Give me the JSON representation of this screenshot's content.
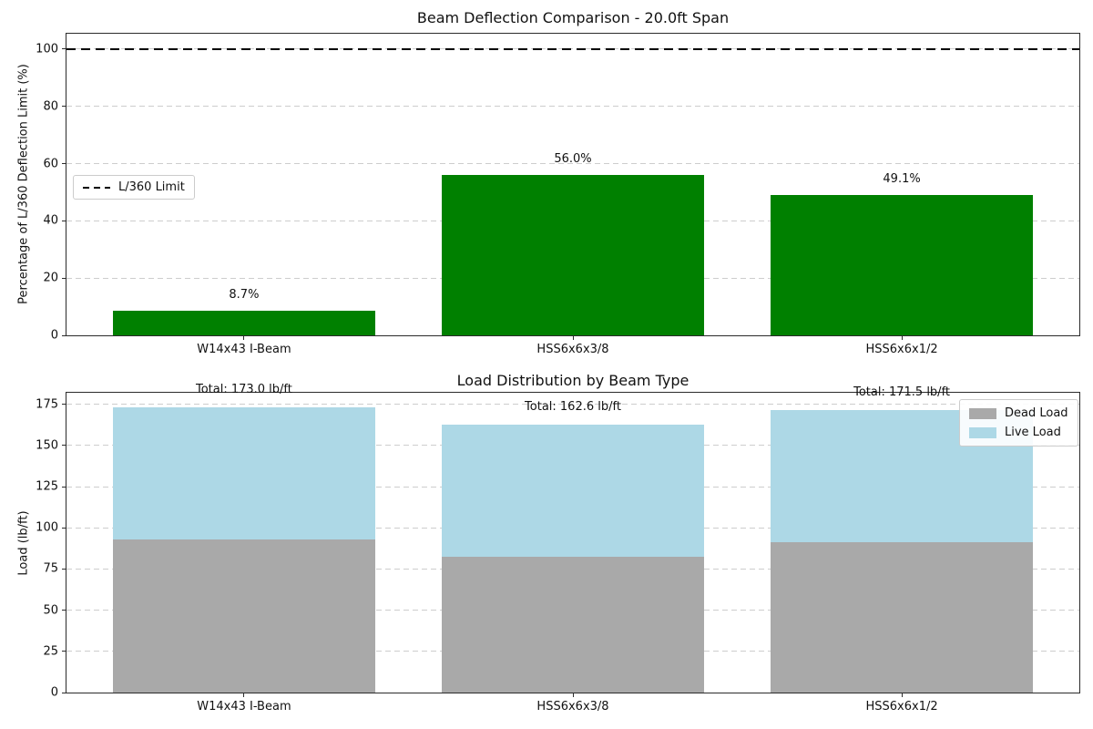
{
  "figure": {
    "background": "#ffffff"
  },
  "chart_data": [
    {
      "type": "bar",
      "title": "Beam Deflection Comparison - 20.0ft Span",
      "xlabel": "",
      "ylabel": "Percentage of L/360 Deflection Limit (%)",
      "categories": [
        "W14x43 I-Beam",
        "HSS6x6x3/8",
        "HSS6x6x1/2"
      ],
      "values": [
        8.7,
        56.0,
        49.1
      ],
      "value_labels": [
        "8.7%",
        "56.0%",
        "49.1%"
      ],
      "bar_color": "#008000",
      "ylim": [
        0,
        105.4
      ],
      "yticks": [
        0,
        20,
        40,
        60,
        80,
        100
      ],
      "grid": true,
      "reference_line": {
        "value": 100,
        "label": "L/360 Limit",
        "color": "#000000",
        "style": "dashed"
      },
      "legend_position": "center left"
    },
    {
      "type": "stacked-bar",
      "title": "Load Distribution by Beam Type",
      "xlabel": "",
      "ylabel": "Load (lb/ft)",
      "categories": [
        "W14x43 I-Beam",
        "HSS6x6x3/8",
        "HSS6x6x1/2"
      ],
      "series": [
        {
          "name": "Dead Load",
          "color": "#a9a9a9",
          "values": [
            93.0,
            82.6,
            91.5
          ]
        },
        {
          "name": "Live Load",
          "color": "#add8e6",
          "values": [
            80.0,
            80.0,
            80.0
          ]
        }
      ],
      "totals": [
        173.0,
        162.6,
        171.5
      ],
      "total_labels": [
        "Total: 173.0 lb/ft",
        "Total: 162.6 lb/ft",
        "Total: 171.5 lb/ft"
      ],
      "ylim": [
        0,
        182
      ],
      "yticks": [
        0,
        25,
        50,
        75,
        100,
        125,
        150,
        175
      ],
      "grid": true,
      "legend_position": "upper right"
    }
  ]
}
